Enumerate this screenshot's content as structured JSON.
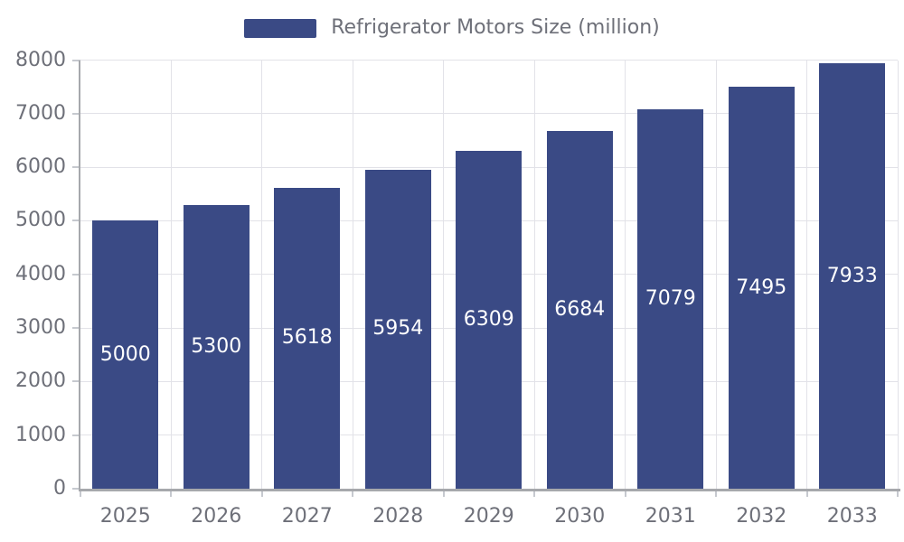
{
  "legend": {
    "items": [
      {
        "label": "Refrigerator Motors Size (million)"
      }
    ]
  },
  "chart_data": {
    "type": "bar",
    "title": "Refrigerator Motors Size (million)",
    "categories": [
      "2025",
      "2026",
      "2027",
      "2028",
      "2029",
      "2030",
      "2031",
      "2032",
      "2033"
    ],
    "series": [
      {
        "name": "Refrigerator Motors Size (million)",
        "values": [
          5000,
          5300,
          5618,
          5954,
          6309,
          6684,
          7079,
          7495,
          7933
        ]
      }
    ],
    "xlabel": "",
    "ylabel": "",
    "ylim": [
      0,
      8000
    ],
    "ytick_interval": 1000,
    "yticks": [
      0,
      1000,
      2000,
      3000,
      4000,
      5000,
      6000,
      7000,
      8000
    ],
    "grid": true,
    "legend_position": "top-center",
    "value_labels": "inside-center",
    "colors": {
      "bar": "#3A4A85",
      "value_label": "#FFFFFF",
      "axis_label": "#6E7079",
      "legend_text": "#6E7079",
      "gridline": "#E2E2E8",
      "axis_line": "#A6A8AC",
      "tick": "#C6C9CF",
      "background": "#FFFFFF"
    }
  }
}
